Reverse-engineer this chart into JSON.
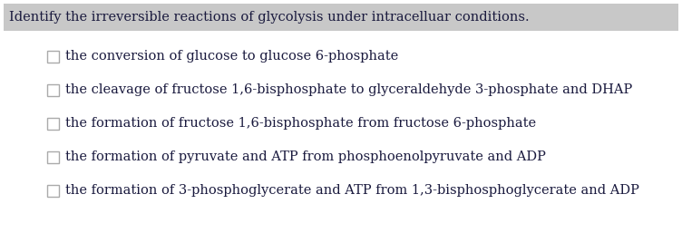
{
  "title": "Identify the irreversible reactions of glycolysis under intracelluar conditions.",
  "title_bg": "#c8c8c8",
  "title_fontsize": 10.5,
  "title_color": "#1a1a3e",
  "options": [
    "the conversion of glucose to glucose 6-phosphate",
    "the cleavage of fructose 1,6-bisphosphate to glyceraldehyde 3-phosphate and DHAP",
    "the formation of fructose 1,6-bisphosphate from fructose 6-phosphate",
    "the formation of pyruvate and ATP from phosphoenolpyruvate and ADP",
    "the formation of 3-phosphoglycerate and ATP from 1,3-bisphosphoglycerate and ADP"
  ],
  "option_fontsize": 10.5,
  "option_color": "#1a1a3e",
  "bg_color": "#ffffff",
  "checkbox_color": "#ffffff",
  "checkbox_edge": "#aaaaaa",
  "fig_width": 7.52,
  "fig_height": 2.57,
  "dpi": 100
}
